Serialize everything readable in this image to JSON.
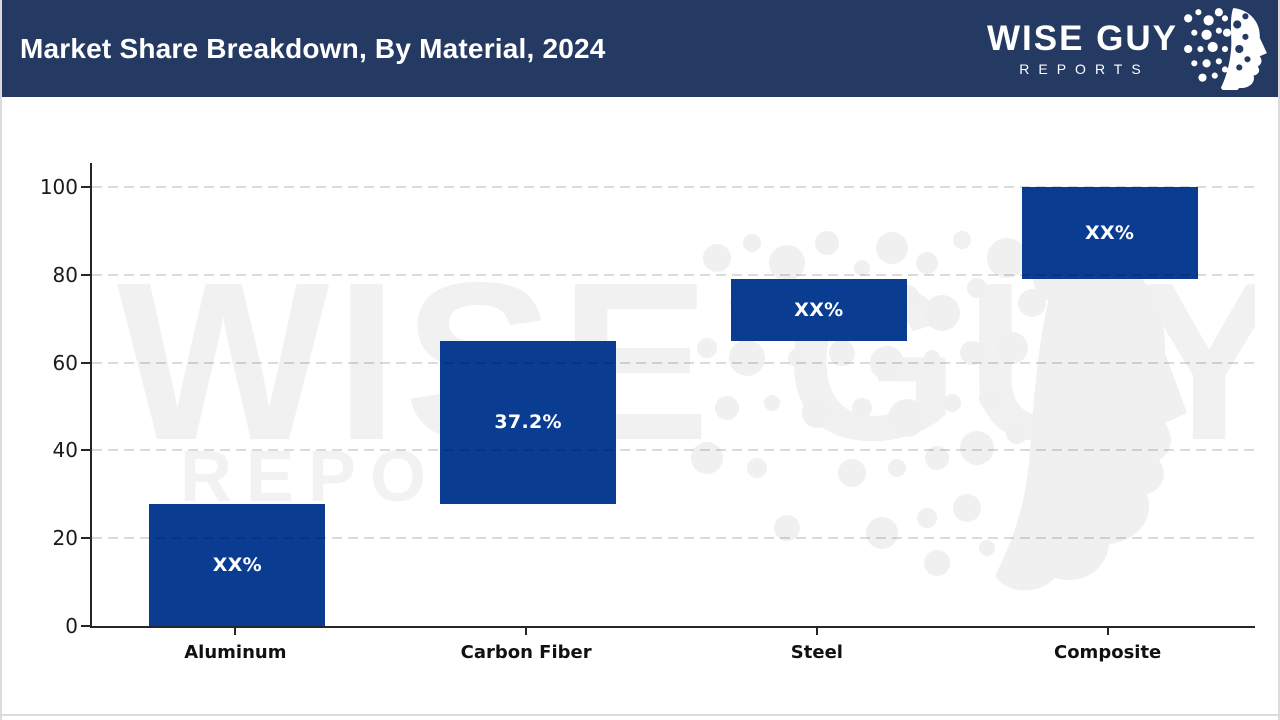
{
  "header": {
    "title": "Market Share Breakdown, By Material, 2024",
    "logo": {
      "wordmark": "WISE GUY",
      "subtext": "REPORTS"
    }
  },
  "watermark": {
    "wordmark": "WISE GUY",
    "subtext": "REPORTS"
  },
  "colors": {
    "header_bg": "#243a63",
    "bar": "#0a3d91",
    "axis": "#262626",
    "grid": "rgba(0,0,0,0.14)",
    "bar_label": "#ffffff",
    "watermark": "#f1f1f1",
    "frame": "#dcdcdc"
  },
  "chart_data": {
    "type": "bar",
    "subtype": "floating-waterfall",
    "title": "Market Share Breakdown, By Material, 2024",
    "categories": [
      "Aluminum",
      "Carbon Fiber",
      "Steel",
      "Composite"
    ],
    "segments": [
      {
        "category": "Aluminum",
        "start": 0,
        "end": 27.8,
        "label": "XX%"
      },
      {
        "category": "Carbon Fiber",
        "start": 27.8,
        "end": 65,
        "label": "37.2%"
      },
      {
        "category": "Steel",
        "start": 65,
        "end": 79,
        "label": "XX%"
      },
      {
        "category": "Composite",
        "start": 79,
        "end": 100,
        "label": "XX%"
      }
    ],
    "yticks": [
      0,
      20,
      40,
      60,
      80,
      100
    ],
    "ylim": [
      0,
      105.5
    ],
    "xlabel": "",
    "ylabel": "",
    "grid": "dashed-horizontal",
    "legend": "none"
  }
}
